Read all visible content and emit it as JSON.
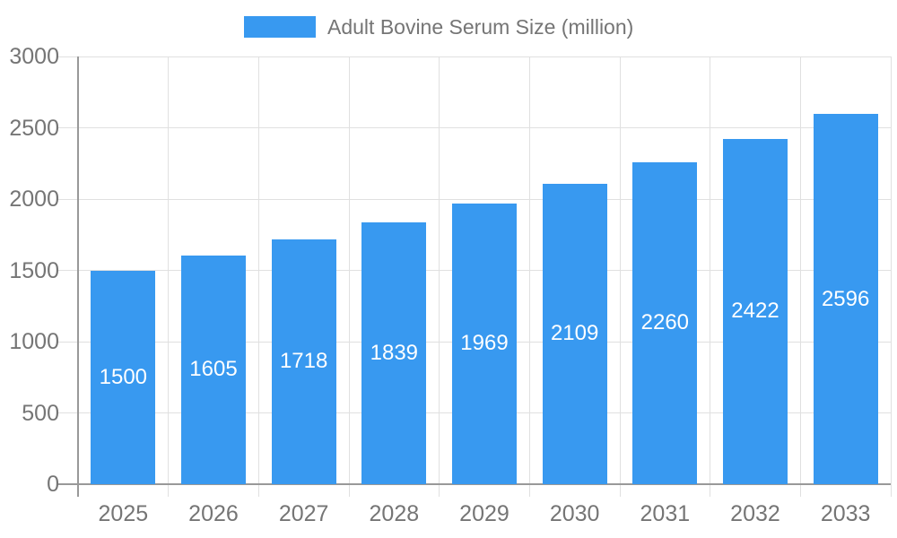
{
  "chart_data": {
    "type": "bar",
    "title": "",
    "legend": {
      "position": "top",
      "label": "Adult Bovine Serum Size (million)"
    },
    "categories": [
      "2025",
      "2026",
      "2027",
      "2028",
      "2029",
      "2030",
      "2031",
      "2032",
      "2033"
    ],
    "values": [
      1500,
      1605,
      1718,
      1839,
      1969,
      2109,
      2260,
      2422,
      2596
    ],
    "xlabel": "",
    "ylabel": "",
    "ylim": [
      0,
      3000
    ],
    "yticks": [
      0,
      500,
      1000,
      1500,
      2000,
      2500,
      3000
    ],
    "grid": true,
    "colors": {
      "bar": "#3899F0",
      "value_label": "#FFFFFF",
      "axis": "#999999",
      "gridline": "#E0E0E0",
      "tick_label": "#757575",
      "legend_text": "#757575"
    }
  }
}
